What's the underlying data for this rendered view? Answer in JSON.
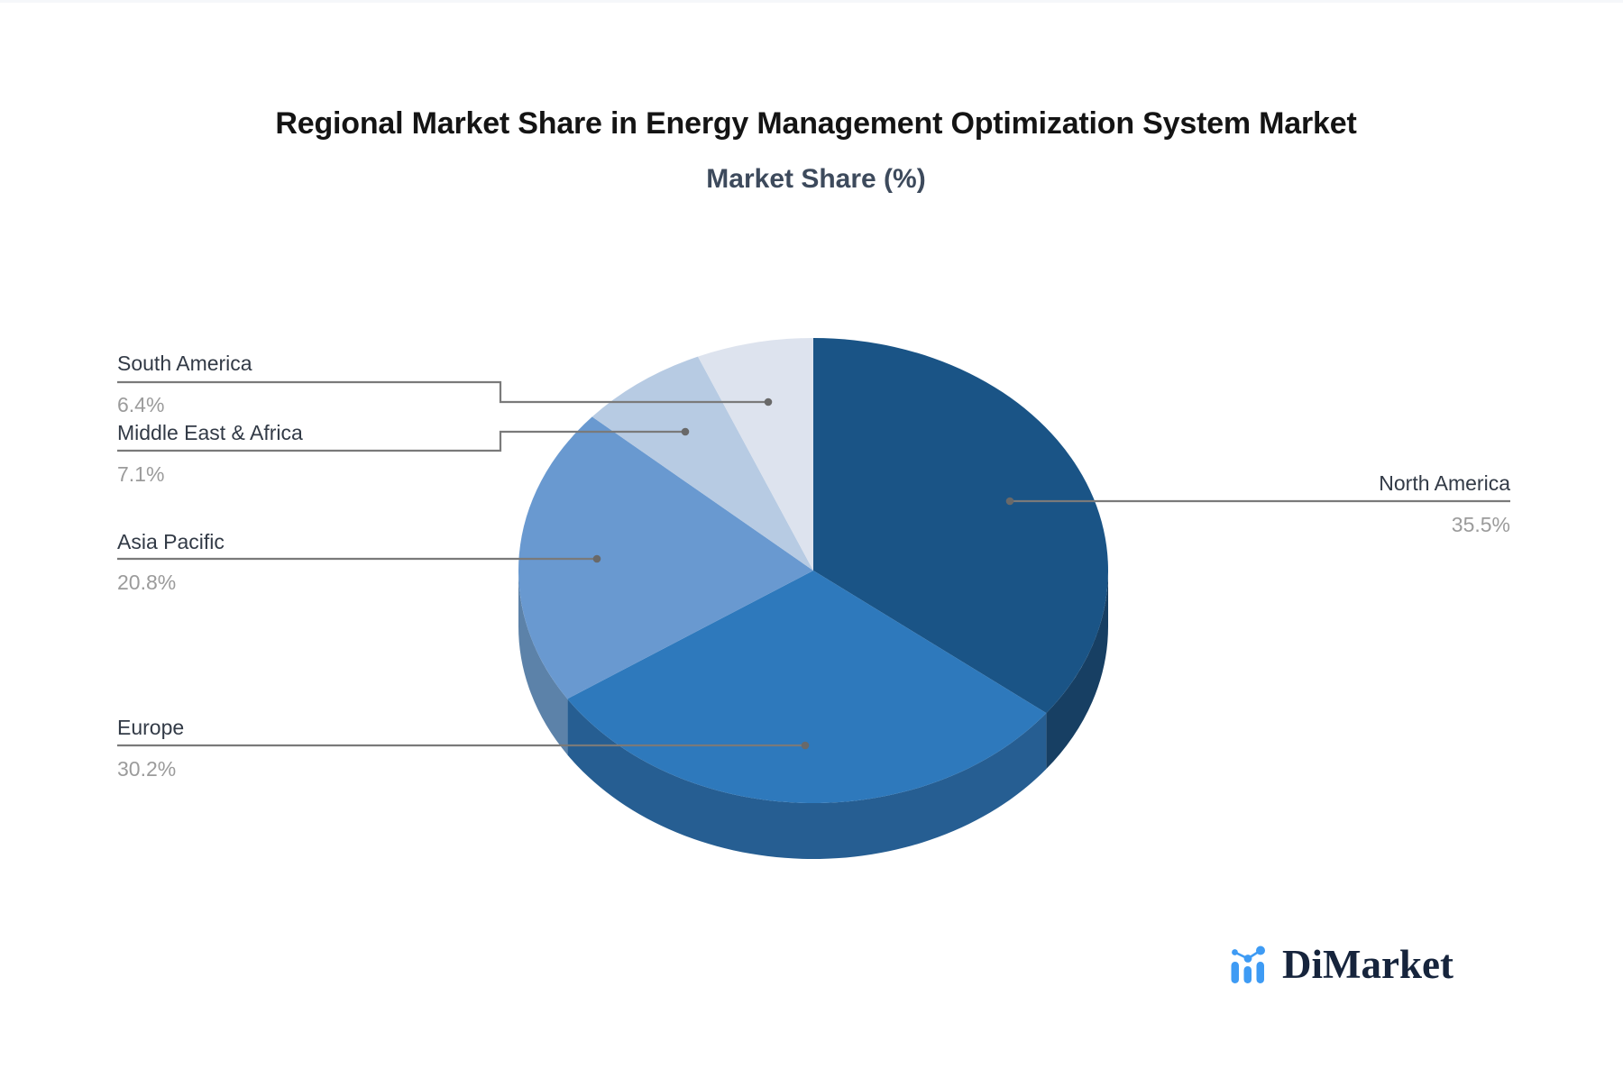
{
  "header": {
    "title": "Regional Market Share in Energy Management Optimization System Market",
    "subtitle": "Market Share (%)"
  },
  "chart_data": {
    "type": "pie",
    "style": "3d",
    "title": "Regional Market Share in Energy Management Optimization System Market",
    "subtitle": "Market Share (%)",
    "unit": "%",
    "direction": "clockwise",
    "start_angle_deg": 0,
    "legend_position": "callout-labels",
    "segments": [
      {
        "label": "North America",
        "value": 35.5,
        "display": "35.5%",
        "color": "#1a5486",
        "side_color": "#173f63"
      },
      {
        "label": "Europe",
        "value": 30.2,
        "display": "30.2%",
        "color": "#2e79bc",
        "side_color": "#265e92"
      },
      {
        "label": "Asia Pacific",
        "value": 20.8,
        "display": "20.8%",
        "color": "#6999d0",
        "side_color": "#5c82a9"
      },
      {
        "label": "Middle East & Africa",
        "value": 7.1,
        "display": "7.1%",
        "color": "#b7cbe3",
        "side_color": "#9db4cf"
      },
      {
        "label": "South America",
        "value": 6.4,
        "display": "6.4%",
        "color": "#dde3ee",
        "side_color": "#c3cddd"
      }
    ],
    "leader_line_color": "#7a7a7a",
    "leader_dot_color": "#696969",
    "label_color": "#323a46",
    "value_color": "#9b9b9b"
  },
  "brand": {
    "name": "DiMarket",
    "icon": "bar-line-chart-icon",
    "icon_color": "#3e9bf4",
    "text_color": "#16243c"
  }
}
